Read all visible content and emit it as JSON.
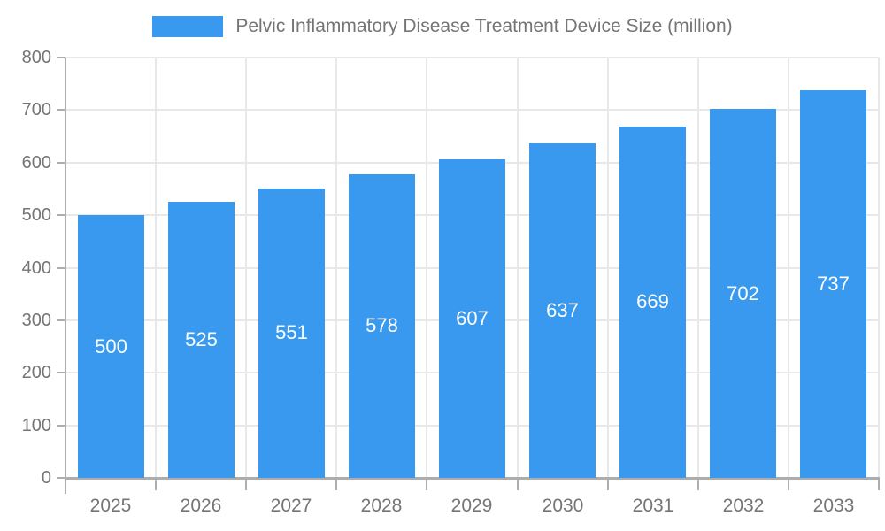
{
  "legend": {
    "label": "Pelvic Inflammatory Disease Treatment Device Size (million)"
  },
  "chart_data": {
    "type": "bar",
    "title": "Pelvic Inflammatory Disease Treatment Device Size (million)",
    "series_name": "Pelvic Inflammatory Disease Treatment Device Size (million)",
    "categories": [
      "2025",
      "2026",
      "2027",
      "2028",
      "2029",
      "2030",
      "2031",
      "2032",
      "2033"
    ],
    "values": [
      500,
      525,
      551,
      578,
      607,
      637,
      669,
      702,
      737
    ],
    "xlabel": "",
    "ylabel": "",
    "ylim": [
      0,
      800
    ],
    "yticks": [
      0,
      100,
      200,
      300,
      400,
      500,
      600,
      700,
      800
    ],
    "grid": true,
    "legend_position": "top",
    "value_labels": "inside-center",
    "colors": {
      "bar": "#3899EE",
      "value_label_text": "#ffffff",
      "axis_text": "#757575",
      "grid_line": "#e8e8e8",
      "axis_line": "#adadad"
    }
  }
}
